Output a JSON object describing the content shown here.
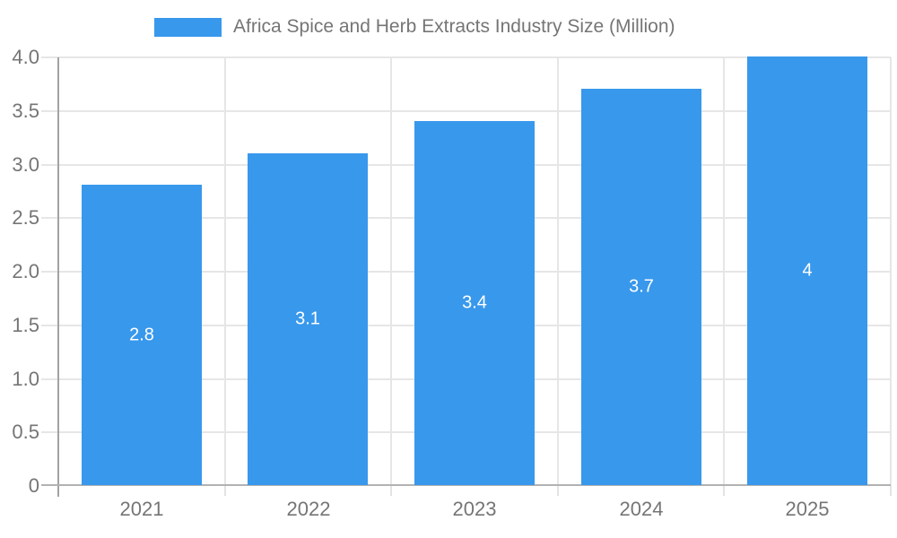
{
  "chart_data": {
    "type": "bar",
    "title": "Africa Spice and Herb Extracts Industry Size (Million)",
    "legend": {
      "position": "top",
      "label": "Africa Spice and Herb Extracts Industry Size (Million)"
    },
    "categories": [
      "2021",
      "2022",
      "2023",
      "2024",
      "2025"
    ],
    "values": [
      2.8,
      3.1,
      3.4,
      3.7,
      4
    ],
    "bar_labels": [
      "2.8",
      "3.1",
      "3.4",
      "3.7",
      "4"
    ],
    "xlabel": "",
    "ylabel": "",
    "ylim": [
      0,
      4
    ],
    "y_ticks": [
      0,
      0.5,
      1.0,
      1.5,
      2.0,
      2.5,
      3.0,
      3.5,
      4.0
    ],
    "y_tick_labels": [
      "0",
      "0.5",
      "1.0",
      "1.5",
      "2.0",
      "2.5",
      "3.0",
      "3.5",
      "4.0"
    ],
    "grid": true,
    "colors": {
      "bar": "#3898ec",
      "bar_label": "#ffffff",
      "axis_text": "#757575",
      "title_text": "#757575",
      "gridline": "#e6e6e6",
      "axis_line": "#a2a2a2",
      "baseline": "#b2b2b2",
      "background": "#ffffff"
    }
  }
}
